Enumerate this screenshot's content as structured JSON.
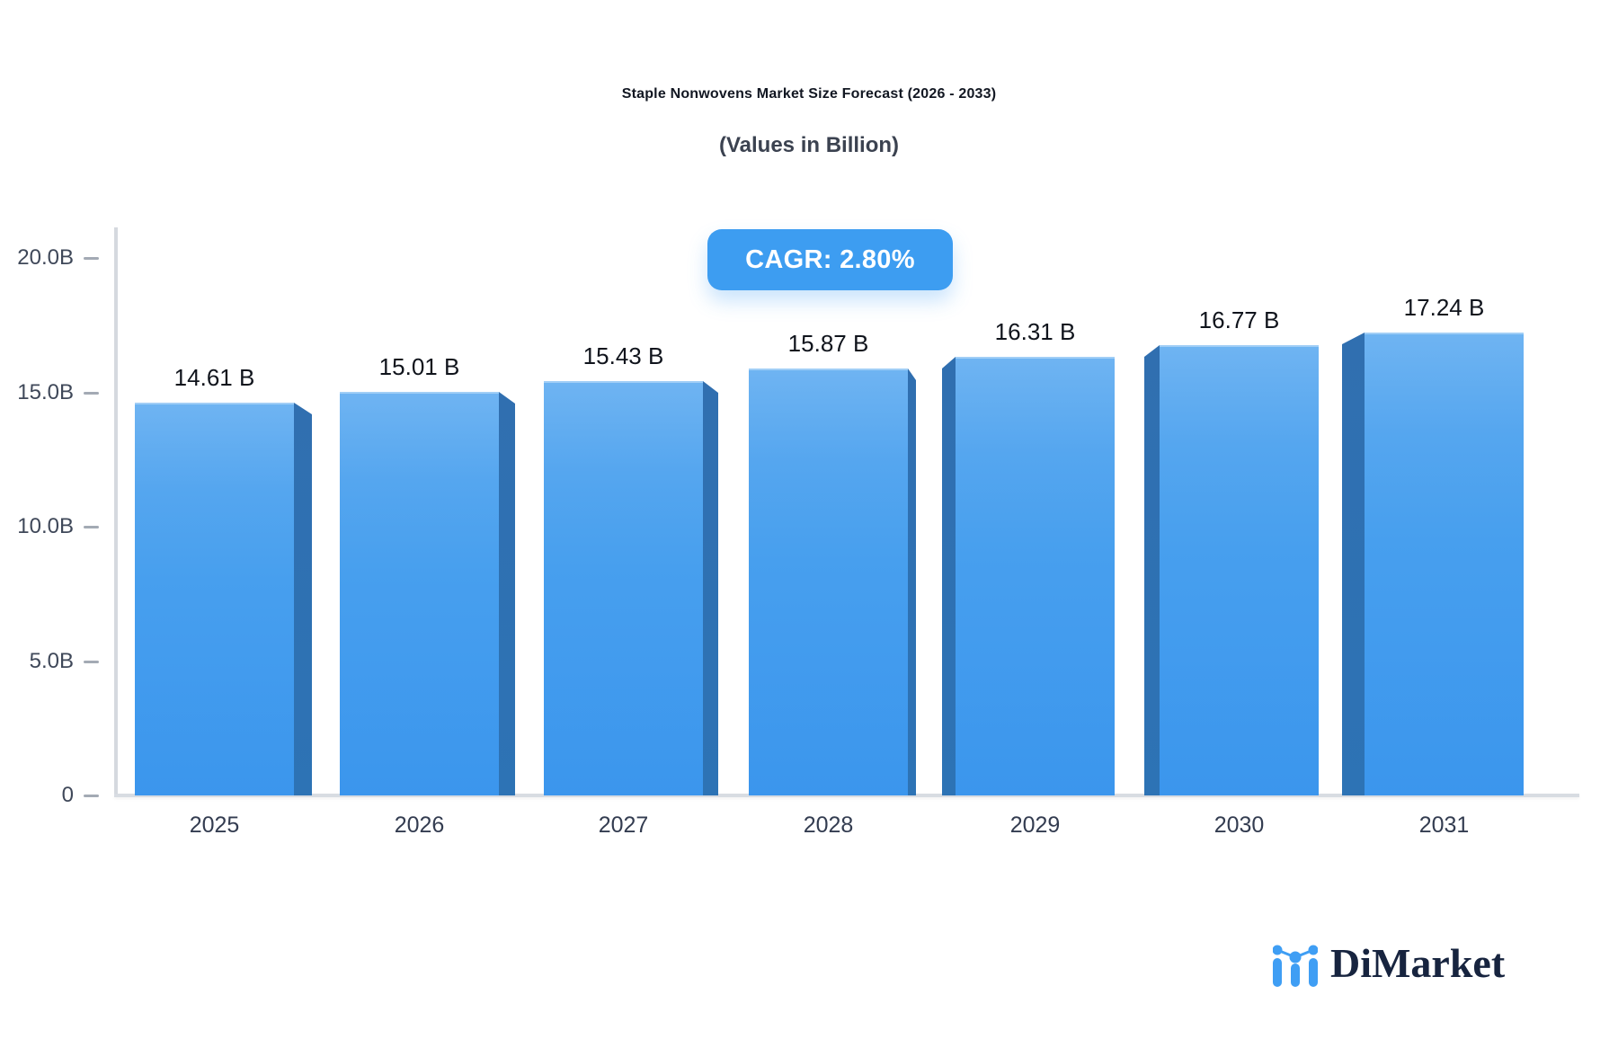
{
  "title": "Staple Nonwovens Market Size Forecast (2026 - 2033)",
  "subtitle": "(Values in Billion)",
  "badge": {
    "label": "CAGR: 2.80%",
    "bg_color": "#3d9df1",
    "text_color": "#ffffff"
  },
  "chart_data": {
    "type": "bar",
    "title": "Staple Nonwovens Market Size Forecast (2026 - 2033)",
    "subtitle": "(Values in Billion)",
    "categories": [
      "2025",
      "2026",
      "2027",
      "2028",
      "2029",
      "2030",
      "2031"
    ],
    "values": [
      14.61,
      15.01,
      15.43,
      15.87,
      16.31,
      16.77,
      17.24
    ],
    "bar_labels": [
      "14.61 B",
      "15.01 B",
      "15.43 B",
      "15.87 B",
      "16.31 B",
      "16.77 B",
      "17.24 B"
    ],
    "xlabel": "",
    "ylabel": "",
    "ylim": [
      0,
      20
    ],
    "yticks": [
      {
        "value": 20,
        "label": "20.0B"
      },
      {
        "value": 15,
        "label": "15.0B"
      },
      {
        "value": 10,
        "label": "10.0B"
      },
      {
        "value": 5,
        "label": "5.0B"
      },
      {
        "value": 0,
        "label": "0"
      }
    ],
    "grid": false,
    "legend_position": "none",
    "bar_color": "#479fee",
    "bar_side_color": "#2d73b5",
    "cagr": "2.80%"
  },
  "brand": {
    "name": "DiMarket",
    "icon": "bar-line-chart-icon",
    "icon_color": "#3f9ef4",
    "text_color": "#17243f"
  }
}
